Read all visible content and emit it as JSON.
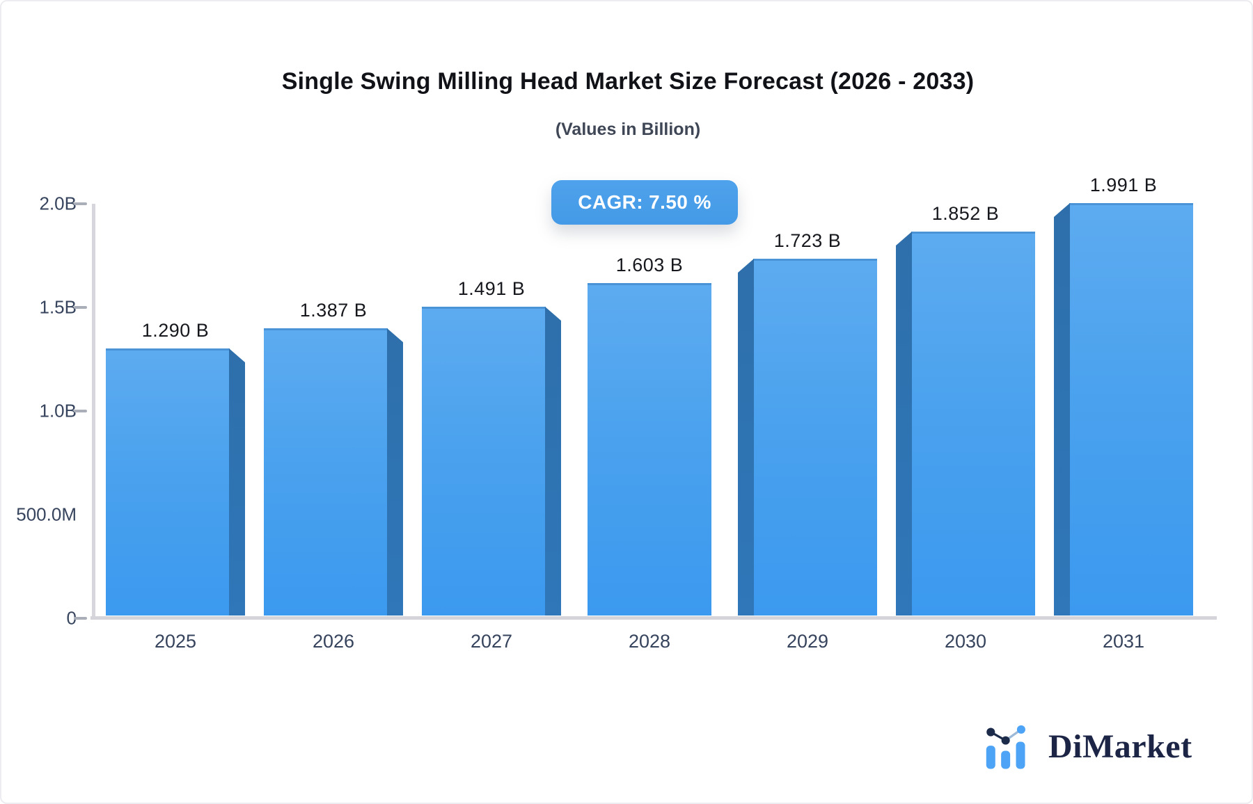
{
  "header": {
    "title": "Single Swing Milling Head Market Size Forecast (2026 - 2033)",
    "subtitle": "(Values in Billion)",
    "cagr_badge": "CAGR: 7.50 %"
  },
  "chart_data": {
    "type": "bar",
    "categories": [
      "2025",
      "2026",
      "2027",
      "2028",
      "2029",
      "2030",
      "2031"
    ],
    "values": [
      1.29,
      1.387,
      1.491,
      1.603,
      1.723,
      1.852,
      1.991
    ],
    "value_labels": [
      "1.290 B",
      "1.387 B",
      "1.491 B",
      "1.603 B",
      "1.723 B",
      "1.852 B",
      "1.991 B"
    ],
    "title": "Single Swing Milling Head Market Size Forecast (2026 - 2033)",
    "subtitle": "(Values in Billion)",
    "annotation": "CAGR: 7.50 %",
    "xlabel": "",
    "ylabel": "",
    "unit": "Billion",
    "ylim": [
      0,
      2.0
    ],
    "grid": false,
    "legend": "none",
    "bar_style": "3d-beveled",
    "y_ticks": [
      {
        "label": "2.0B",
        "value": 2.0,
        "dash": true
      },
      {
        "label": "1.5B",
        "value": 1.5,
        "dash": true
      },
      {
        "label": "1.0B",
        "value": 1.0,
        "dash": true
      },
      {
        "label": "500.0M",
        "value": 0.5,
        "dash": false
      },
      {
        "label": "0",
        "value": 0.0,
        "dash": true
      }
    ]
  },
  "colors": {
    "bar_face_top": "#5dabf0",
    "bar_face_bottom": "#3b99ef",
    "bar_bevel": "#2f74b3",
    "badge_background": "#4a9de9",
    "badge_text": "#ffffff",
    "axis_line": "#d5d5db",
    "tick_text": "#37445d",
    "title_text": "#101217",
    "value_label_text": "#16181d",
    "logo_text": "#1c2545",
    "logo_blue": "#4da3f5"
  },
  "branding": {
    "logo_text": "DiMarket",
    "logo_icon": "bar-chart-logo-icon"
  }
}
